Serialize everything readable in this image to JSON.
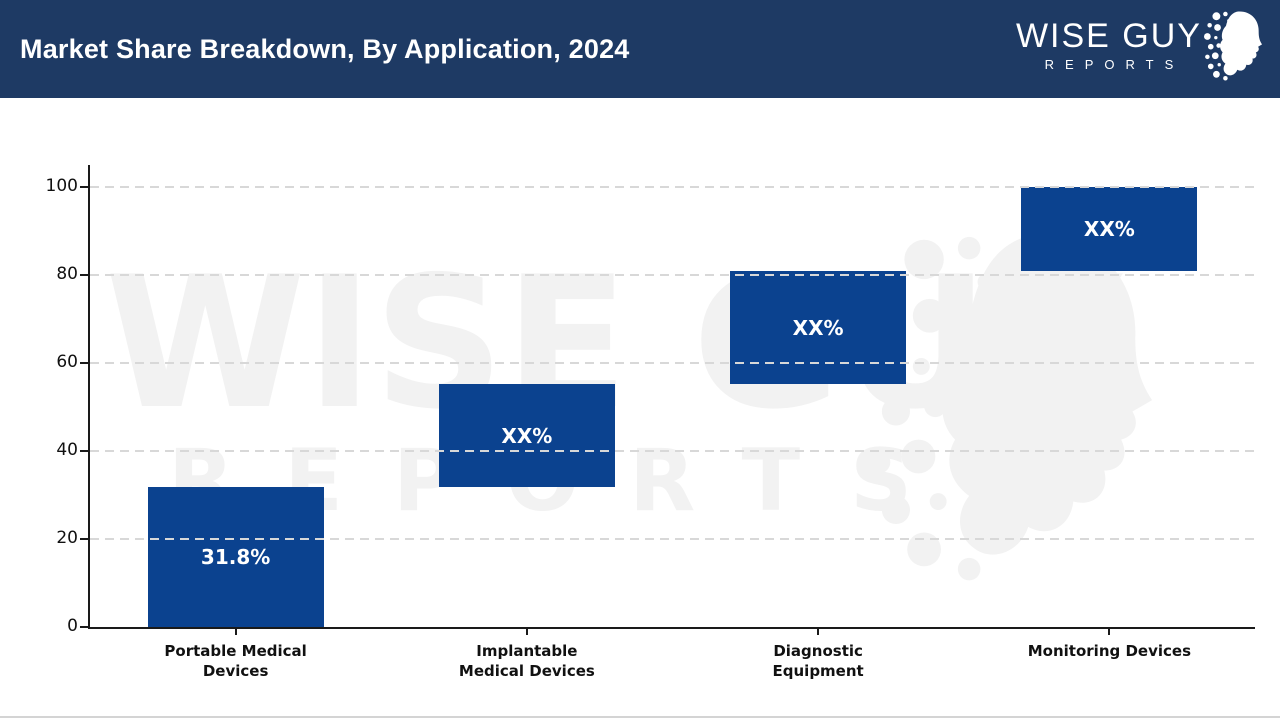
{
  "header": {
    "title": "Market Share Breakdown, By Application, 2024",
    "bg_color": "#1e3a64",
    "logo": {
      "line1": "WISE GUY",
      "line2": "REPORTS"
    }
  },
  "watermark": {
    "line1": "WISE GUY",
    "line2": "REPORTS",
    "color": "#f2f2f2"
  },
  "chart_data": {
    "type": "bar",
    "subtype": "waterfall-floating-bars",
    "title": "Market Share Breakdown, By Application, 2024",
    "categories": [
      "Portable Medical Devices",
      "Implantable Medical Devices",
      "Diagnostic Equipment",
      "Monitoring Devices"
    ],
    "categories_lines": [
      [
        "Portable Medical",
        "Devices"
      ],
      [
        "Implantable",
        "Medical Devices"
      ],
      [
        "Diagnostic",
        "Equipment"
      ],
      [
        "Monitoring Devices"
      ]
    ],
    "bars": [
      {
        "label": "31.8%",
        "start": 0,
        "end": 31.8
      },
      {
        "label": "XX%",
        "start": 31.8,
        "end": 55.2
      },
      {
        "label": "XX%",
        "start": 55.2,
        "end": 80.9
      },
      {
        "label": "XX%",
        "start": 80.9,
        "end": 100
      }
    ],
    "ylim": [
      0,
      100
    ],
    "yticks": [
      0,
      20,
      40,
      60,
      80,
      100
    ],
    "grid": "horizontal-dashed",
    "grid_color": "#d8d8d8",
    "bar_color": "#0b428f",
    "bar_label_color": "#ffffff",
    "axis_color": "#1a1a1a",
    "legend": "none"
  }
}
